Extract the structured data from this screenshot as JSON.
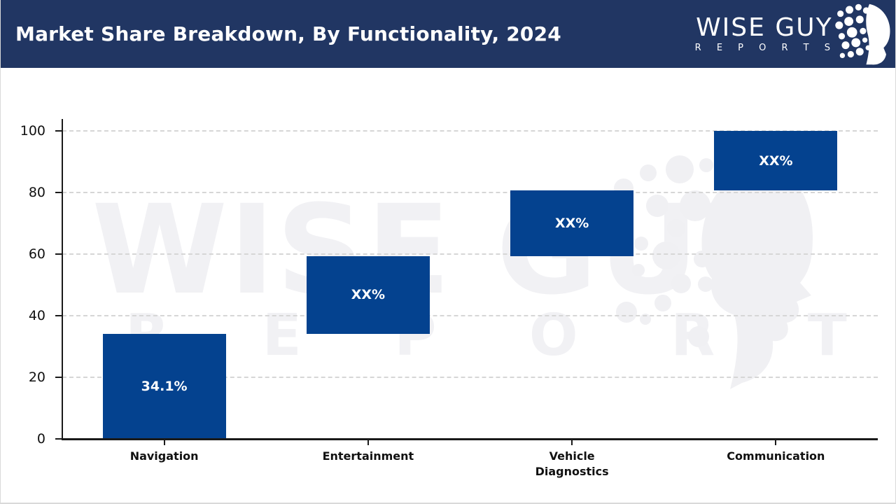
{
  "header": {
    "title": "Market Share Breakdown, By Functionality, 2024",
    "bg_color": "#213663",
    "logo": {
      "line1": "WISE GUY",
      "line2": "R E P O R T S"
    }
  },
  "watermark": {
    "line1": "WISE GUY",
    "line2": "R E P O R T S"
  },
  "chart_data": {
    "type": "bar",
    "subtype": "waterfall",
    "title": "Market Share Breakdown, By Functionality, 2024",
    "categories": [
      "Navigation",
      "Entertainment",
      "Vehicle\nDiagnostics",
      "Communication"
    ],
    "segments": [
      {
        "category": "Navigation",
        "start": 0,
        "end": 34.1,
        "label": "34.1%"
      },
      {
        "category": "Entertainment",
        "start": 34.1,
        "end": 59.4,
        "label": "XX%"
      },
      {
        "category": "Vehicle Diagnostics",
        "start": 59.4,
        "end": 80.6,
        "label": "XX%"
      },
      {
        "category": "Communication",
        "start": 80.6,
        "end": 100,
        "label": "XX%"
      }
    ],
    "yticks": [
      0,
      20,
      40,
      60,
      80,
      100
    ],
    "ytick_labels": [
      "0",
      "20",
      "40",
      "60",
      "80",
      "100"
    ],
    "ylim": [
      0,
      104
    ],
    "grid": "horizontal-dashed",
    "legend": "none",
    "colors": {
      "bar": "#04428f",
      "bar_label": "#ffffff",
      "gridline": "#d6d6d6",
      "axis": "#1a1a1a",
      "tick_label": "#111111"
    }
  }
}
